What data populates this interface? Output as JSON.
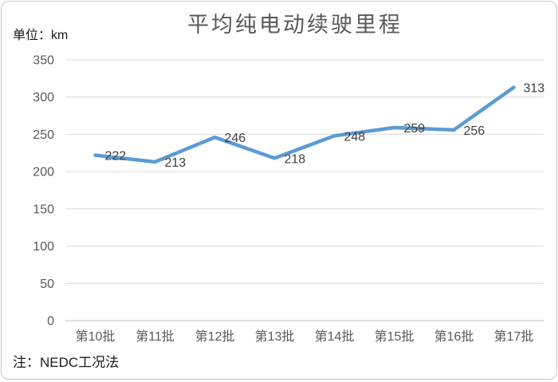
{
  "chart": {
    "title": "平均纯电动续驶里程",
    "unit_label": "单位：km",
    "note": "注：NEDC工况法"
  },
  "chart_data": {
    "type": "line",
    "title": "平均纯电动续驶里程",
    "unit_label": "单位：km",
    "note": "注：NEDC工况法",
    "categories": [
      "第10批",
      "第11批",
      "第12批",
      "第13批",
      "第14批",
      "第15批",
      "第16批",
      "第17批"
    ],
    "series": [
      {
        "name": "平均纯电动续驶里程",
        "values": [
          222,
          213,
          246,
          218,
          248,
          259,
          256,
          313
        ]
      }
    ],
    "xlabel": "",
    "ylabel": "",
    "ylim": [
      0,
      350
    ],
    "y_ticks": [
      0,
      50,
      100,
      150,
      200,
      250,
      300,
      350
    ],
    "grid": true,
    "legend_position": "none",
    "data_labels": true,
    "colors": {
      "line": "#5B9BD5",
      "gridline": "#D9D9D9",
      "axis_line": "#BFBFBF",
      "tick_text": "#595959",
      "data_label_text": "#404040",
      "title_text": "#595959",
      "annotation_text": "#1a1a1a",
      "border": "#c9c9c9",
      "background": "#ffffff"
    }
  }
}
